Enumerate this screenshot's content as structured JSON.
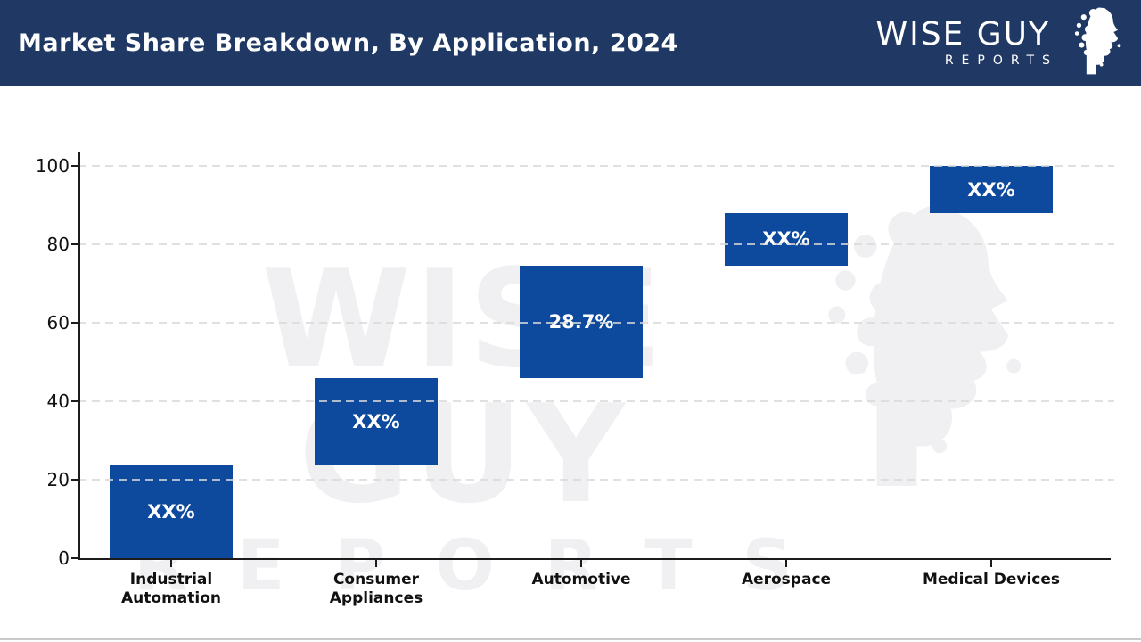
{
  "header": {
    "title": "Market Share Breakdown, By Application, 2024",
    "brand": {
      "name": "WISE GUY",
      "subtitle": "REPORTS"
    }
  },
  "watermark": {
    "line1": "WISE GUY",
    "line2": "REPORTS"
  },
  "colors": {
    "header_bg": "#1f3864",
    "bar": "#0d4a9e",
    "bar_label": "#ffffff",
    "axis": "#1c1c1c",
    "grid": "#d9d9d9",
    "watermark": "#f0f0f2"
  },
  "chart_data": {
    "type": "bar",
    "subtype": "waterfall",
    "title": "Market Share Breakdown, By Application, 2024",
    "xlabel": "",
    "ylabel": "",
    "ylim": [
      0,
      107
    ],
    "yticks": [
      0,
      20,
      40,
      60,
      80,
      100
    ],
    "grid": "horizontal-dashed",
    "legend": "none",
    "categories": [
      "Industrial Automation",
      "Consumer Appliances",
      "Automotive",
      "Aerospace",
      "Medical Devices"
    ],
    "segments": [
      {
        "category": "Industrial Automation",
        "start": 0,
        "end": 23.6,
        "size": 23.6,
        "label": "XX%"
      },
      {
        "category": "Consumer Appliances",
        "start": 23.6,
        "end": 45.9,
        "size": 22.3,
        "label": "XX%"
      },
      {
        "category": "Automotive",
        "start": 45.9,
        "end": 74.6,
        "size": 28.7,
        "label": "28.7%"
      },
      {
        "category": "Aerospace",
        "start": 74.6,
        "end": 87.9,
        "size": 13.3,
        "label": "XX%"
      },
      {
        "category": "Medical Devices",
        "start": 87.9,
        "end": 100,
        "size": 12.1,
        "label": "XX%"
      }
    ]
  }
}
